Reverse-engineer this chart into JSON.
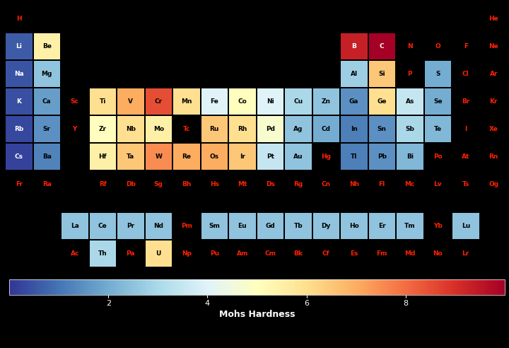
{
  "background_color": "#000000",
  "text_color_unknown": "#ff2200",
  "colorbar_label": "Mohs Hardness",
  "colorbar_ticks": [
    2,
    4,
    6,
    8
  ],
  "hardness_min": 0,
  "hardness_max": 10,
  "elements": [
    {
      "symbol": "H",
      "row": 1,
      "col": 1,
      "hardness": null
    },
    {
      "symbol": "He",
      "row": 1,
      "col": 18,
      "hardness": null
    },
    {
      "symbol": "Li",
      "row": 2,
      "col": 1,
      "hardness": 0.6
    },
    {
      "symbol": "Be",
      "row": 2,
      "col": 2,
      "hardness": 5.5
    },
    {
      "symbol": "B",
      "row": 2,
      "col": 13,
      "hardness": 9.3
    },
    {
      "symbol": "C",
      "row": 2,
      "col": 14,
      "hardness": 10.0
    },
    {
      "symbol": "N",
      "row": 2,
      "col": 15,
      "hardness": null
    },
    {
      "symbol": "O",
      "row": 2,
      "col": 16,
      "hardness": null
    },
    {
      "symbol": "F",
      "row": 2,
      "col": 17,
      "hardness": null
    },
    {
      "symbol": "Ne",
      "row": 2,
      "col": 18,
      "hardness": null
    },
    {
      "symbol": "Na",
      "row": 3,
      "col": 1,
      "hardness": 0.5
    },
    {
      "symbol": "Mg",
      "row": 3,
      "col": 2,
      "hardness": 2.5
    },
    {
      "symbol": "Al",
      "row": 3,
      "col": 13,
      "hardness": 2.75
    },
    {
      "symbol": "Si",
      "row": 3,
      "col": 14,
      "hardness": 6.5
    },
    {
      "symbol": "P",
      "row": 3,
      "col": 15,
      "hardness": null
    },
    {
      "symbol": "S",
      "row": 3,
      "col": 16,
      "hardness": 2.0
    },
    {
      "symbol": "Cl",
      "row": 3,
      "col": 17,
      "hardness": null
    },
    {
      "symbol": "Ar",
      "row": 3,
      "col": 18,
      "hardness": null
    },
    {
      "symbol": "K",
      "row": 4,
      "col": 1,
      "hardness": 0.4
    },
    {
      "symbol": "Ca",
      "row": 4,
      "col": 2,
      "hardness": 1.75
    },
    {
      "symbol": "Sc",
      "row": 4,
      "col": 3,
      "hardness": null
    },
    {
      "symbol": "Ti",
      "row": 4,
      "col": 4,
      "hardness": 6.0
    },
    {
      "symbol": "V",
      "row": 4,
      "col": 5,
      "hardness": 7.0
    },
    {
      "symbol": "Cr",
      "row": 4,
      "col": 6,
      "hardness": 8.5
    },
    {
      "symbol": "Mn",
      "row": 4,
      "col": 7,
      "hardness": 6.0
    },
    {
      "symbol": "Fe",
      "row": 4,
      "col": 8,
      "hardness": 4.0
    },
    {
      "symbol": "Co",
      "row": 4,
      "col": 9,
      "hardness": 5.0
    },
    {
      "symbol": "Ni",
      "row": 4,
      "col": 10,
      "hardness": 4.0
    },
    {
      "symbol": "Cu",
      "row": 4,
      "col": 11,
      "hardness": 3.0
    },
    {
      "symbol": "Zn",
      "row": 4,
      "col": 12,
      "hardness": 2.5
    },
    {
      "symbol": "Ga",
      "row": 4,
      "col": 13,
      "hardness": 1.5
    },
    {
      "symbol": "Ge",
      "row": 4,
      "col": 14,
      "hardness": 6.0
    },
    {
      "symbol": "As",
      "row": 4,
      "col": 15,
      "hardness": 3.5
    },
    {
      "symbol": "Se",
      "row": 4,
      "col": 16,
      "hardness": 2.0
    },
    {
      "symbol": "Br",
      "row": 4,
      "col": 17,
      "hardness": null
    },
    {
      "symbol": "Kr",
      "row": 4,
      "col": 18,
      "hardness": null
    },
    {
      "symbol": "Rb",
      "row": 5,
      "col": 1,
      "hardness": 0.3
    },
    {
      "symbol": "Sr",
      "row": 5,
      "col": 2,
      "hardness": 1.5
    },
    {
      "symbol": "Y",
      "row": 5,
      "col": 3,
      "hardness": null
    },
    {
      "symbol": "Zr",
      "row": 5,
      "col": 4,
      "hardness": 5.0
    },
    {
      "symbol": "Nb",
      "row": 5,
      "col": 5,
      "hardness": 6.0
    },
    {
      "symbol": "Mo",
      "row": 5,
      "col": 6,
      "hardness": 5.5
    },
    {
      "symbol": "Tc",
      "row": 5,
      "col": 7,
      "hardness": -1.0
    },
    {
      "symbol": "Ru",
      "row": 5,
      "col": 8,
      "hardness": 6.5
    },
    {
      "symbol": "Rh",
      "row": 5,
      "col": 9,
      "hardness": 6.0
    },
    {
      "symbol": "Pd",
      "row": 5,
      "col": 10,
      "hardness": 4.75
    },
    {
      "symbol": "Ag",
      "row": 5,
      "col": 11,
      "hardness": 2.5
    },
    {
      "symbol": "Cd",
      "row": 5,
      "col": 12,
      "hardness": 2.0
    },
    {
      "symbol": "In",
      "row": 5,
      "col": 13,
      "hardness": 1.2
    },
    {
      "symbol": "Sn",
      "row": 5,
      "col": 14,
      "hardness": 1.5
    },
    {
      "symbol": "Sb",
      "row": 5,
      "col": 15,
      "hardness": 3.0
    },
    {
      "symbol": "Te",
      "row": 5,
      "col": 16,
      "hardness": 2.25
    },
    {
      "symbol": "I",
      "row": 5,
      "col": 17,
      "hardness": null
    },
    {
      "symbol": "Xe",
      "row": 5,
      "col": 18,
      "hardness": null
    },
    {
      "symbol": "Cs",
      "row": 6,
      "col": 1,
      "hardness": 0.2
    },
    {
      "symbol": "Ba",
      "row": 6,
      "col": 2,
      "hardness": 1.25
    },
    {
      "symbol": "Hf",
      "row": 6,
      "col": 4,
      "hardness": 5.5
    },
    {
      "symbol": "Ta",
      "row": 6,
      "col": 5,
      "hardness": 6.5
    },
    {
      "symbol": "W",
      "row": 6,
      "col": 6,
      "hardness": 7.5
    },
    {
      "symbol": "Re",
      "row": 6,
      "col": 7,
      "hardness": 7.0
    },
    {
      "symbol": "Os",
      "row": 6,
      "col": 8,
      "hardness": 7.0
    },
    {
      "symbol": "Ir",
      "row": 6,
      "col": 9,
      "hardness": 6.5
    },
    {
      "symbol": "Pt",
      "row": 6,
      "col": 10,
      "hardness": 3.5
    },
    {
      "symbol": "Au",
      "row": 6,
      "col": 11,
      "hardness": 2.5
    },
    {
      "symbol": "Hg",
      "row": 6,
      "col": 12,
      "hardness": -1.0
    },
    {
      "symbol": "Tl",
      "row": 6,
      "col": 13,
      "hardness": 1.2
    },
    {
      "symbol": "Pb",
      "row": 6,
      "col": 14,
      "hardness": 1.5
    },
    {
      "symbol": "Bi",
      "row": 6,
      "col": 15,
      "hardness": 2.25
    },
    {
      "symbol": "Po",
      "row": 6,
      "col": 16,
      "hardness": null
    },
    {
      "symbol": "At",
      "row": 6,
      "col": 17,
      "hardness": null
    },
    {
      "symbol": "Rn",
      "row": 6,
      "col": 18,
      "hardness": null
    },
    {
      "symbol": "Fr",
      "row": 7,
      "col": 1,
      "hardness": null
    },
    {
      "symbol": "Ra",
      "row": 7,
      "col": 2,
      "hardness": null
    },
    {
      "symbol": "Rf",
      "row": 7,
      "col": 4,
      "hardness": null
    },
    {
      "symbol": "Db",
      "row": 7,
      "col": 5,
      "hardness": null
    },
    {
      "symbol": "Sg",
      "row": 7,
      "col": 6,
      "hardness": null
    },
    {
      "symbol": "Bh",
      "row": 7,
      "col": 7,
      "hardness": null
    },
    {
      "symbol": "Hs",
      "row": 7,
      "col": 8,
      "hardness": null
    },
    {
      "symbol": "Mt",
      "row": 7,
      "col": 9,
      "hardness": null
    },
    {
      "symbol": "Ds",
      "row": 7,
      "col": 10,
      "hardness": null
    },
    {
      "symbol": "Rg",
      "row": 7,
      "col": 11,
      "hardness": null
    },
    {
      "symbol": "Cn",
      "row": 7,
      "col": 12,
      "hardness": null
    },
    {
      "symbol": "Nh",
      "row": 7,
      "col": 13,
      "hardness": null
    },
    {
      "symbol": "Fl",
      "row": 7,
      "col": 14,
      "hardness": null
    },
    {
      "symbol": "Mc",
      "row": 7,
      "col": 15,
      "hardness": null
    },
    {
      "symbol": "Lv",
      "row": 7,
      "col": 16,
      "hardness": null
    },
    {
      "symbol": "Ts",
      "row": 7,
      "col": 17,
      "hardness": null
    },
    {
      "symbol": "Og",
      "row": 7,
      "col": 18,
      "hardness": null
    },
    {
      "symbol": "La",
      "row": 9,
      "col": 3,
      "hardness": 2.5
    },
    {
      "symbol": "Ce",
      "row": 9,
      "col": 4,
      "hardness": 2.5
    },
    {
      "symbol": "Pr",
      "row": 9,
      "col": 5,
      "hardness": 2.5
    },
    {
      "symbol": "Nd",
      "row": 9,
      "col": 6,
      "hardness": 2.5
    },
    {
      "symbol": "Pm",
      "row": 9,
      "col": 7,
      "hardness": null
    },
    {
      "symbol": "Sm",
      "row": 9,
      "col": 8,
      "hardness": 2.5
    },
    {
      "symbol": "Eu",
      "row": 9,
      "col": 9,
      "hardness": 2.5
    },
    {
      "symbol": "Gd",
      "row": 9,
      "col": 10,
      "hardness": 2.5
    },
    {
      "symbol": "Tb",
      "row": 9,
      "col": 11,
      "hardness": 2.5
    },
    {
      "symbol": "Dy",
      "row": 9,
      "col": 12,
      "hardness": 2.5
    },
    {
      "symbol": "Ho",
      "row": 9,
      "col": 13,
      "hardness": 2.5
    },
    {
      "symbol": "Er",
      "row": 9,
      "col": 14,
      "hardness": 2.5
    },
    {
      "symbol": "Tm",
      "row": 9,
      "col": 15,
      "hardness": 2.5
    },
    {
      "symbol": "Yb",
      "row": 9,
      "col": 16,
      "hardness": null
    },
    {
      "symbol": "Lu",
      "row": 9,
      "col": 17,
      "hardness": 2.5
    },
    {
      "symbol": "Ac",
      "row": 10,
      "col": 3,
      "hardness": null
    },
    {
      "symbol": "Th",
      "row": 10,
      "col": 4,
      "hardness": 3.0
    },
    {
      "symbol": "Pa",
      "row": 10,
      "col": 5,
      "hardness": null
    },
    {
      "symbol": "U",
      "row": 10,
      "col": 6,
      "hardness": 6.0
    },
    {
      "symbol": "Np",
      "row": 10,
      "col": 7,
      "hardness": null
    },
    {
      "symbol": "Pu",
      "row": 10,
      "col": 8,
      "hardness": null
    },
    {
      "symbol": "Am",
      "row": 10,
      "col": 9,
      "hardness": null
    },
    {
      "symbol": "Cm",
      "row": 10,
      "col": 10,
      "hardness": null
    },
    {
      "symbol": "Bk",
      "row": 10,
      "col": 11,
      "hardness": null
    },
    {
      "symbol": "Cf",
      "row": 10,
      "col": 12,
      "hardness": null
    },
    {
      "symbol": "Es",
      "row": 10,
      "col": 13,
      "hardness": null
    },
    {
      "symbol": "Fm",
      "row": 10,
      "col": 14,
      "hardness": null
    },
    {
      "symbol": "Md",
      "row": 10,
      "col": 15,
      "hardness": null
    },
    {
      "symbol": "No",
      "row": 10,
      "col": 16,
      "hardness": null
    },
    {
      "symbol": "Lr",
      "row": 10,
      "col": 17,
      "hardness": null
    }
  ]
}
